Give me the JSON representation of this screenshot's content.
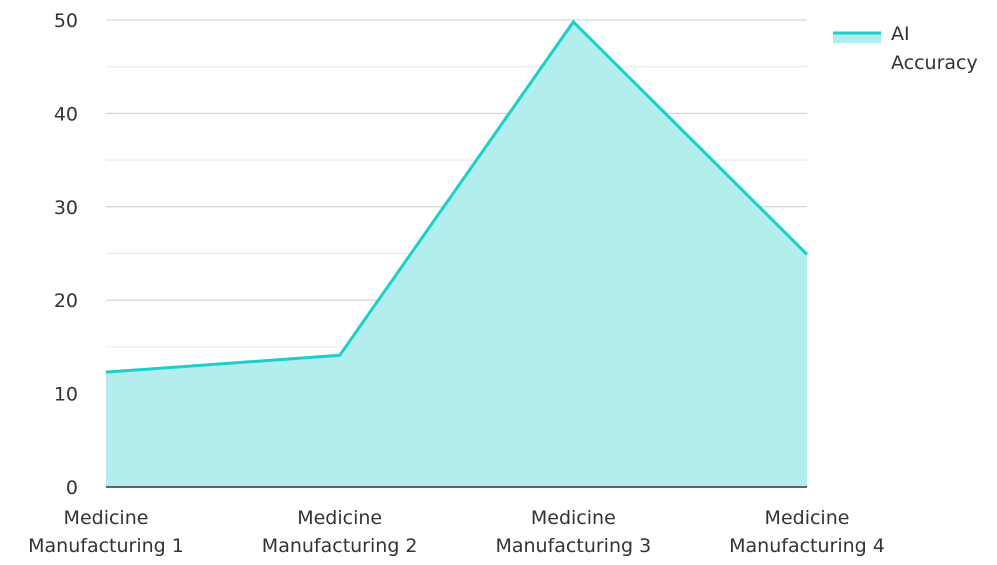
{
  "chart_data": {
    "type": "area",
    "categories": [
      [
        "Medicine",
        "Manufacturing 1"
      ],
      [
        "Medicine",
        "Manufacturing 2"
      ],
      [
        "Medicine",
        "Manufacturing 3"
      ],
      [
        "Medicine",
        "Manufacturing 4"
      ]
    ],
    "series": [
      {
        "name": "AI Accuracy",
        "legend_lines": [
          "AI",
          "Accuracy"
        ],
        "values": [
          12.3,
          14.1,
          49.8,
          24.9
        ],
        "line_color": "#1ccfc9",
        "fill_color": "#b2eeee"
      }
    ],
    "ylim": [
      0,
      50
    ],
    "yticks": [
      0,
      10,
      20,
      30,
      40,
      50
    ],
    "ytick_labels": [
      "0",
      "10",
      "20",
      "30",
      "40",
      "50"
    ],
    "minor_grid": true,
    "grid": true,
    "legend_position": "top-right",
    "title": "",
    "xlabel": "",
    "ylabel": ""
  }
}
